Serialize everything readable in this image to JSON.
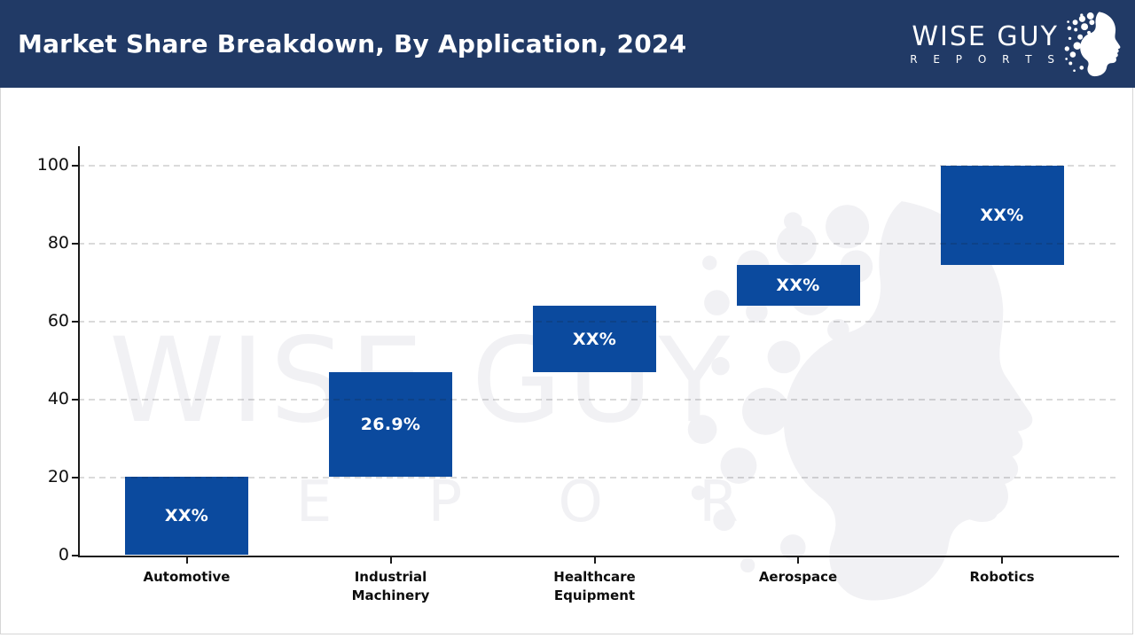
{
  "header": {
    "title": "Market Share Breakdown, By Application, 2024",
    "bg_color": "#213a66",
    "logo": {
      "line1": "WISE GUY",
      "line2": "R E P O R T S",
      "color": "#ffffff"
    }
  },
  "chart_data": {
    "type": "bar",
    "subtype": "waterfall",
    "title": "Market Share Breakdown, By Application, 2024",
    "xlabel": "",
    "ylabel": "",
    "units": "percent market share",
    "categories": [
      "Automotive",
      "Industrial Machinery",
      "Healthcare Equipment",
      "Aerospace",
      "Robotics"
    ],
    "segments": [
      {
        "category": "Automotive",
        "category_lines": [
          "Automotive"
        ],
        "start": 0,
        "end": 20.1,
        "label": "XX%"
      },
      {
        "category": "Industrial Machinery",
        "category_lines": [
          "Industrial",
          "Machinery"
        ],
        "start": 20.1,
        "end": 47.0,
        "label": "26.9%"
      },
      {
        "category": "Healthcare Equipment",
        "category_lines": [
          "Healthcare",
          "Equipment"
        ],
        "start": 47.0,
        "end": 64.0,
        "label": "XX%"
      },
      {
        "category": "Aerospace",
        "category_lines": [
          "Aerospace"
        ],
        "start": 64.0,
        "end": 74.5,
        "label": "XX%"
      },
      {
        "category": "Robotics",
        "category_lines": [
          "Robotics"
        ],
        "start": 74.5,
        "end": 100,
        "label": "XX%"
      }
    ],
    "yticks": [
      0,
      20,
      40,
      60,
      80,
      100
    ],
    "ylim": [
      0,
      105
    ],
    "grid": "horizontal dashed",
    "legend": "none",
    "bar_color": "#0b4a9e",
    "axis_color": "#1a1a1a",
    "watermark": {
      "line1": "WISE GUY",
      "line2": "R E P O R T S",
      "color": "#f1f1f4"
    }
  }
}
